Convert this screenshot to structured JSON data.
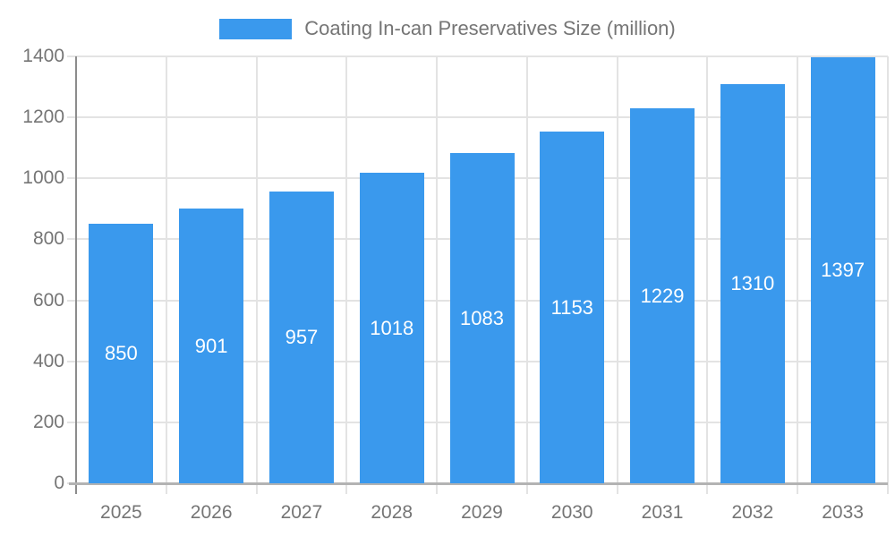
{
  "legend": {
    "label": "Coating In-can Preservatives Size (million)"
  },
  "colors": {
    "bar": "#3a99ed",
    "text": "#757575",
    "grid": "#e3e3e3",
    "y_axis_line": "#8c8c8c",
    "x_axis_line": "#b3b3b3",
    "value_label": "#ffffff",
    "background": "#ffffff"
  },
  "chart_data": {
    "type": "bar",
    "title": "Coating In-can Preservatives Size (million)",
    "categories": [
      "2025",
      "2026",
      "2027",
      "2028",
      "2029",
      "2030",
      "2031",
      "2032",
      "2033"
    ],
    "values": [
      850,
      901,
      957,
      1018,
      1083,
      1153,
      1229,
      1310,
      1397
    ],
    "ytick_labels": [
      "0",
      "200",
      "400",
      "600",
      "800",
      "1000",
      "1200",
      "1400"
    ],
    "ylim": [
      0,
      1400
    ],
    "ytick_step": 200,
    "xlabel": "",
    "ylabel": "",
    "grid": true,
    "legend_position": "top",
    "value_labels": "inside-center"
  }
}
